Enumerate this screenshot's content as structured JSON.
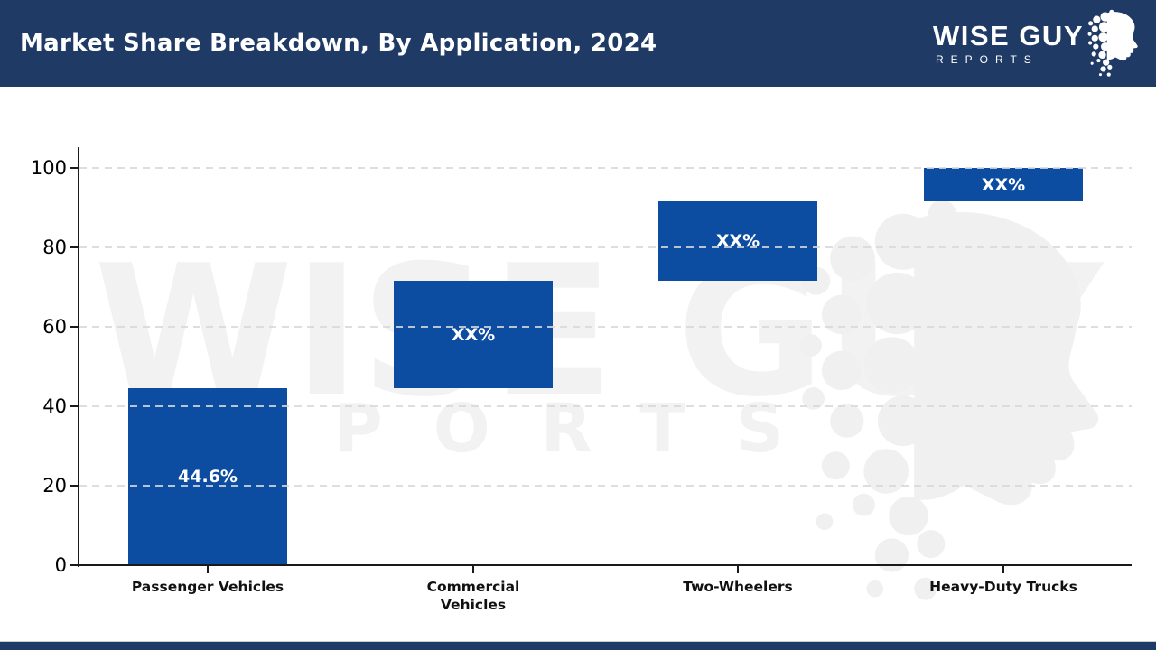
{
  "header": {
    "title": "Market Share Breakdown, By Application, 2024",
    "logo": {
      "wordmark": "WISE GUY",
      "subtext": "REPORTS"
    }
  },
  "watermark": {
    "line1": "WISE GUY",
    "line2": "REPORTS"
  },
  "chart_data": {
    "type": "bar",
    "subtype": "waterfall",
    "title": "Market Share Breakdown, By Application, 2024",
    "categories": [
      "Passenger Vehicles",
      "Commercial Vehicles",
      "Two-Wheelers",
      "Heavy-Duty Trucks"
    ],
    "tick_labels": [
      "Passenger Vehicles",
      "Commercial\nVehicles",
      "Two-Wheelers",
      "Heavy-Duty Trucks"
    ],
    "bars": [
      {
        "category": "Passenger Vehicles",
        "start": 0,
        "end": 44.6,
        "label": "44.6%"
      },
      {
        "category": "Commercial Vehicles",
        "start": 44.6,
        "end": 71.5,
        "label": "XX%"
      },
      {
        "category": "Two-Wheelers",
        "start": 71.5,
        "end": 91.5,
        "label": "XX%"
      },
      {
        "category": "Heavy-Duty Trucks",
        "start": 91.5,
        "end": 100,
        "label": "XX%"
      }
    ],
    "xlabel": "",
    "ylabel": "",
    "yticks": [
      0,
      20,
      40,
      60,
      80,
      100
    ],
    "ylim": [
      0,
      105
    ],
    "grid": "horizontal-dashed",
    "legend": "none",
    "bar_color": "#0d4da1",
    "bar_label_color": "#ffffff"
  },
  "colors": {
    "header_bg": "#203a66",
    "footer_bg": "#203a66",
    "title_text": "#ffffff",
    "bar": "#0d4da1",
    "grid": "#d8d8d8",
    "axis": "#1a1a1a",
    "tick_text": "#000000",
    "watermark": "#f2f2f2"
  }
}
